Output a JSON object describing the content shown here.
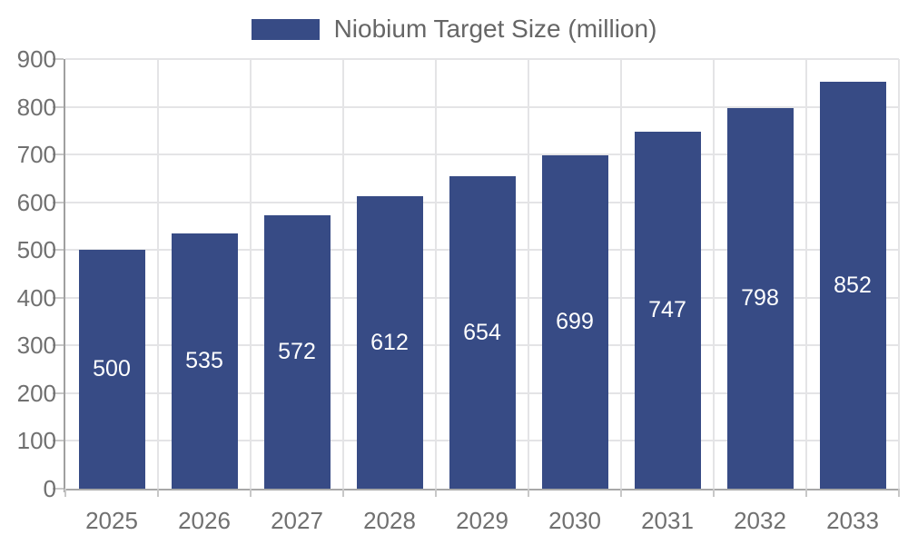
{
  "chart_data": {
    "type": "bar",
    "title": "",
    "legend": "Niobium Target Size (million)",
    "legend_position": "top-center",
    "categories": [
      "2025",
      "2026",
      "2027",
      "2028",
      "2029",
      "2030",
      "2031",
      "2032",
      "2033"
    ],
    "values": [
      500,
      535,
      572,
      612,
      654,
      699,
      747,
      798,
      852
    ],
    "xlabel": "",
    "ylabel": "",
    "ylim": [
      0,
      900
    ],
    "ytick_step": 100,
    "y_ticks": [
      0,
      100,
      200,
      300,
      400,
      500,
      600,
      700,
      800,
      900
    ],
    "grid": true,
    "bar_labels_inside": true,
    "colors": {
      "bar": "#374B85",
      "grid": "#e4e4e6",
      "axis": "#a8a8a8",
      "tick": "#c8c8c8",
      "axis_label": "#707070",
      "legend_text": "#666666",
      "value_label": "#ffffff",
      "background": "#ffffff"
    }
  }
}
